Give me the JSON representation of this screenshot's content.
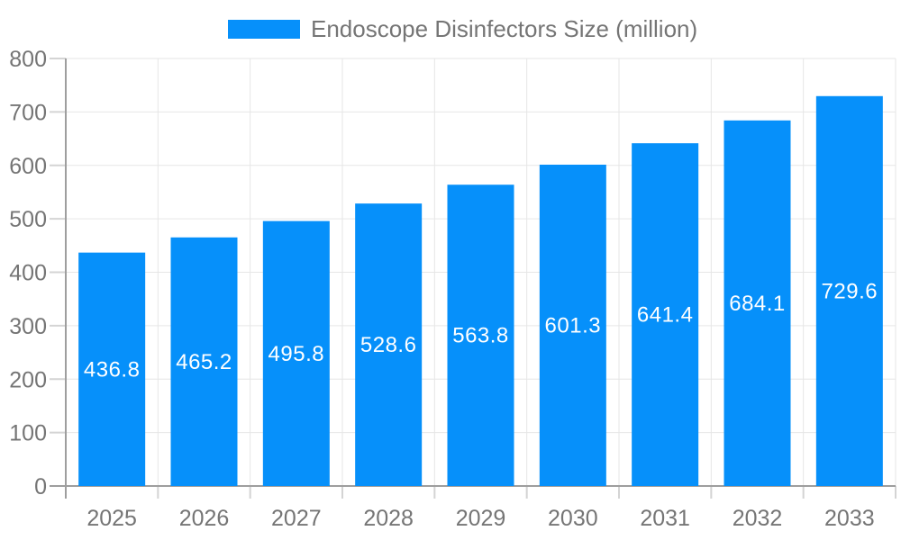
{
  "chart_data": {
    "type": "bar",
    "title": "Endoscope Disinfectors Size (million)",
    "xlabel": "",
    "ylabel": "",
    "categories": [
      "2025",
      "2026",
      "2027",
      "2028",
      "2029",
      "2030",
      "2031",
      "2032",
      "2033"
    ],
    "series": [
      {
        "name": "Endoscope Disinfectors Size (million)",
        "values": [
          436.8,
          465.2,
          495.8,
          528.6,
          563.8,
          601.3,
          641.4,
          684.1,
          729.6
        ]
      }
    ],
    "value_labels": [
      "436.8",
      "465.2",
      "495.8",
      "528.6",
      "563.8",
      "601.3",
      "641.4",
      "684.1",
      "729.6"
    ],
    "ytick_labels": [
      "0",
      "100",
      "200",
      "300",
      "400",
      "500",
      "600",
      "700",
      "800"
    ],
    "ylim": [
      0,
      800
    ],
    "ytick_step": 100,
    "grid": true,
    "legend_position": "top",
    "value_label_position": "inside-center",
    "colors": {
      "bar": "#0690fa",
      "value_label": "#ffffff",
      "axis_text": "#757575",
      "legend_text": "#757575",
      "grid": "#e6e6e6",
      "axis_line": "#9e9e9e",
      "tick": "#d4d4d4",
      "background": "#ffffff"
    }
  }
}
